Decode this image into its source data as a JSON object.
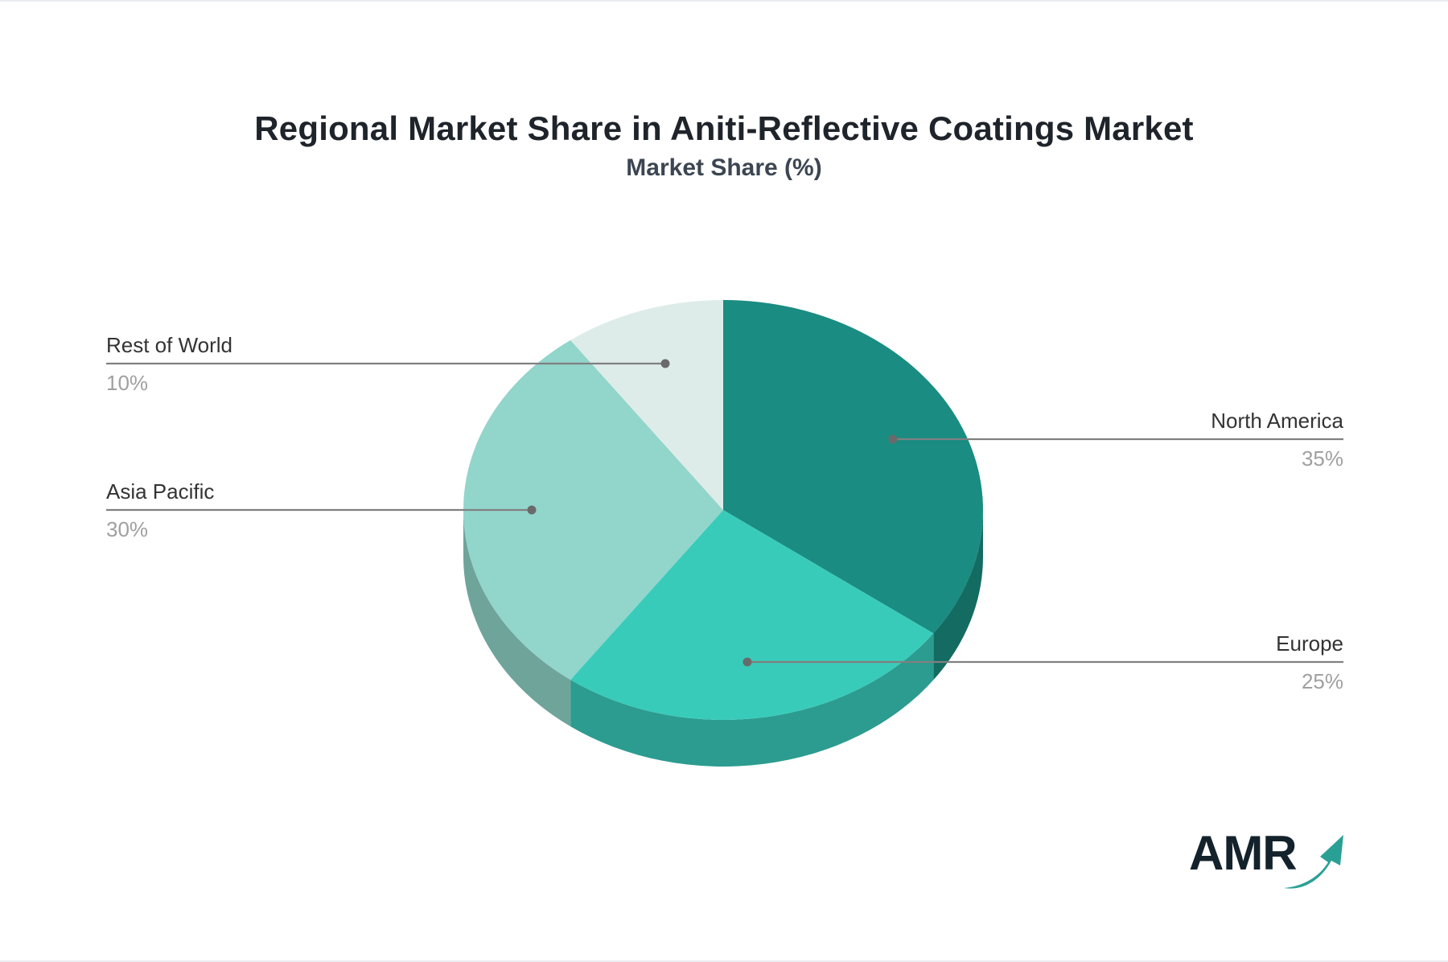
{
  "header": {
    "title": "Regional Market Share in Aniti-Reflective Coatings Market",
    "subtitle": "Market Share (%)",
    "title_color": "#1f242b",
    "subtitle_color": "#3c4652"
  },
  "chart_data": {
    "type": "pie",
    "style": "3d",
    "title": "Regional Market Share in Aniti-Reflective Coatings Market",
    "subtitle": "Market Share (%)",
    "unit": "%",
    "start_angle_deg": 0,
    "direction": "clockwise",
    "legend": "none",
    "label_style": "leader-lines",
    "slices": [
      {
        "label": "North America",
        "value": 35,
        "color": "#1a8c82",
        "side_color": "#136b62"
      },
      {
        "label": "Europe",
        "value": 25,
        "color": "#39cbba",
        "side_color": "#2b9c8f"
      },
      {
        "label": "Asia Pacific",
        "value": 30,
        "color": "#92d5cb",
        "side_color": "#6fa49b"
      },
      {
        "label": "Rest of World",
        "value": 10,
        "color": "#deece9",
        "side_color": "#a8bcb8"
      }
    ]
  },
  "label_style": {
    "name_color": "#333333",
    "value_color": "#a0a0a0",
    "line_color": "#808080",
    "dot_color": "#6a6a6a"
  },
  "logo": {
    "text": "AMR",
    "text_color": "#14222b",
    "arrow_color": "#2aa095"
  }
}
